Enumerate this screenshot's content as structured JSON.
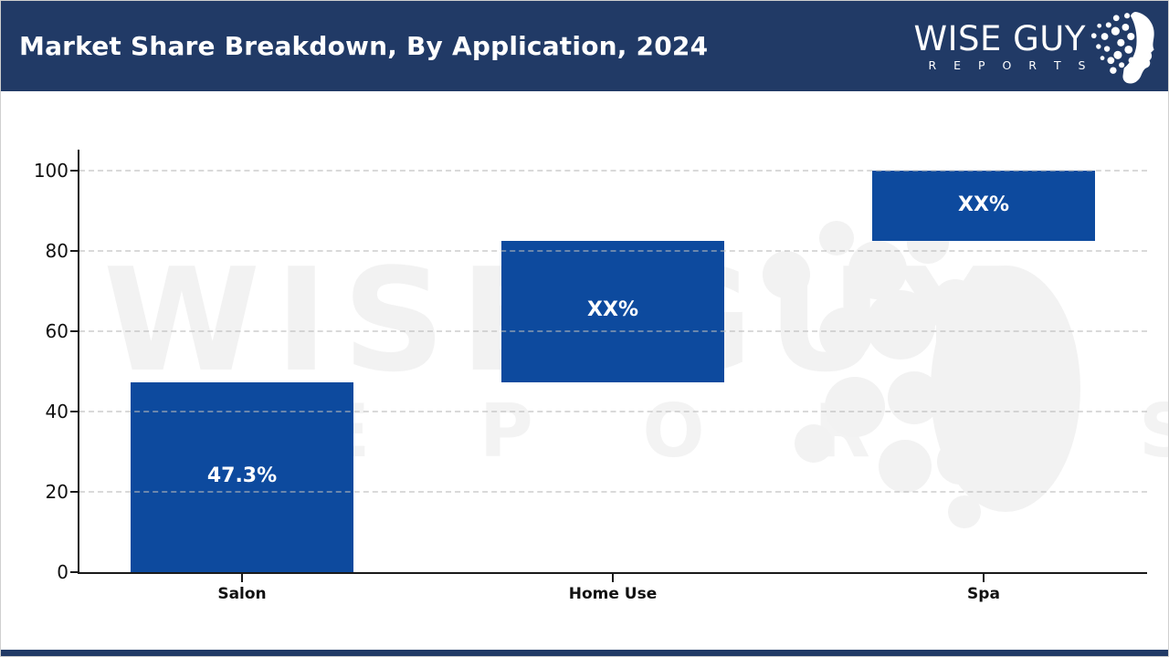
{
  "header": {
    "title": "Market Share Breakdown, By Application, 2024",
    "bg_color": "#213a66",
    "logo": {
      "line1": "WISE GUY",
      "line2": "R E P O R T S"
    }
  },
  "watermark": {
    "line1": "WISE GUY",
    "line2": "R E P O R T S"
  },
  "chart_data": {
    "type": "bar",
    "variant": "stacked-waterfall",
    "title": "Market Share Breakdown, By Application, 2024",
    "categories": [
      "Salon",
      "Home Use",
      "Spa"
    ],
    "segments": [
      {
        "label": "Salon",
        "start": 0,
        "end": 47.3,
        "value_label": "47.3%"
      },
      {
        "label": "Home Use",
        "start": 47.3,
        "end": 82.5,
        "value_label": "XX%"
      },
      {
        "label": "Spa",
        "start": 82.5,
        "end": 100,
        "value_label": "XX%"
      }
    ],
    "ylabel": "",
    "xlabel": "",
    "ylim": [
      0,
      100
    ],
    "yticks": [
      0,
      20,
      40,
      60,
      80,
      100
    ],
    "grid": "dashed-horizontal",
    "legend": "none",
    "bar_color": "#0d4a9e",
    "label_color": "#ffffff",
    "axis_color": "#1a1a1a"
  }
}
